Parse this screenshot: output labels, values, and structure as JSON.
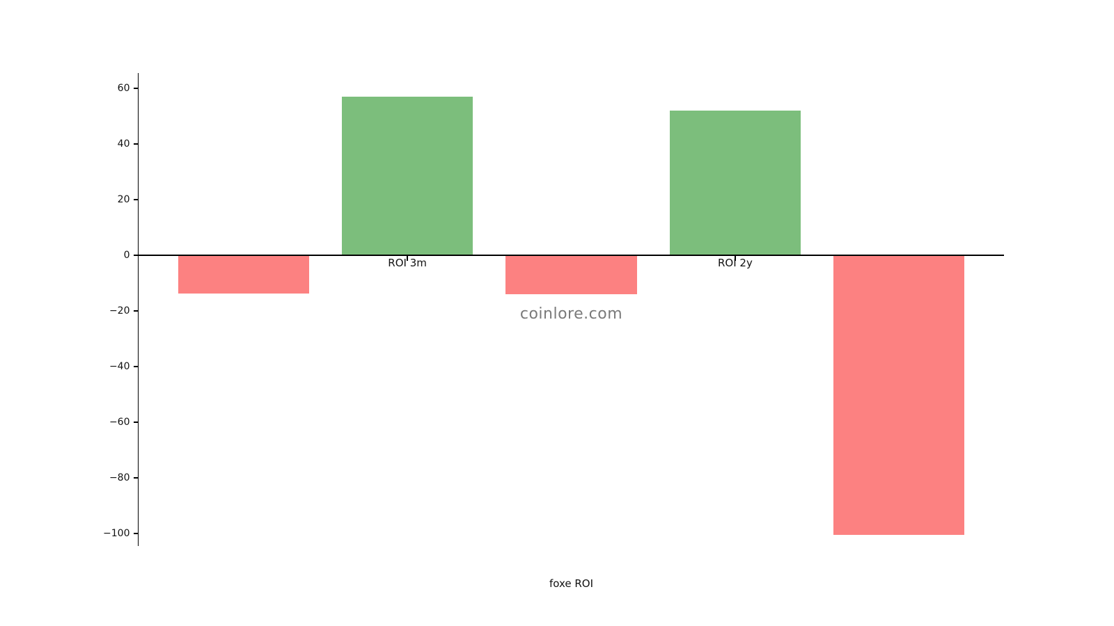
{
  "chart_data": {
    "type": "bar",
    "title": "",
    "xlabel": "foxe ROI",
    "ylabel": "",
    "categories": [
      "",
      "ROI 3m",
      "",
      "ROI 2y",
      ""
    ],
    "values": [
      -13.8,
      56.9,
      -14,
      51.9,
      -100.5
    ],
    "series": [
      {
        "name": "foxe ROI",
        "values": [
          -13.8,
          56.9,
          -14,
          51.9,
          -100.5
        ]
      }
    ],
    "x_tick_labels": [
      {
        "index": 1,
        "label": "ROI 3m"
      },
      {
        "index": 3,
        "label": "ROI 2y"
      }
    ],
    "y_ticks": [
      60,
      40,
      20,
      0,
      -20,
      -40,
      -60,
      -80,
      -100
    ],
    "ylim": [
      -104.5,
      65.5
    ],
    "xlim": [
      -0.64,
      4.64
    ],
    "bar_width": 0.8,
    "grid": false,
    "legend": false,
    "color_positive": "#7cbe7c",
    "color_negative": "#fc8181",
    "axis_color": "#000000",
    "text_color": "#111111"
  },
  "watermark": {
    "text": "coinlore.com",
    "color": "#7a7a7a"
  }
}
